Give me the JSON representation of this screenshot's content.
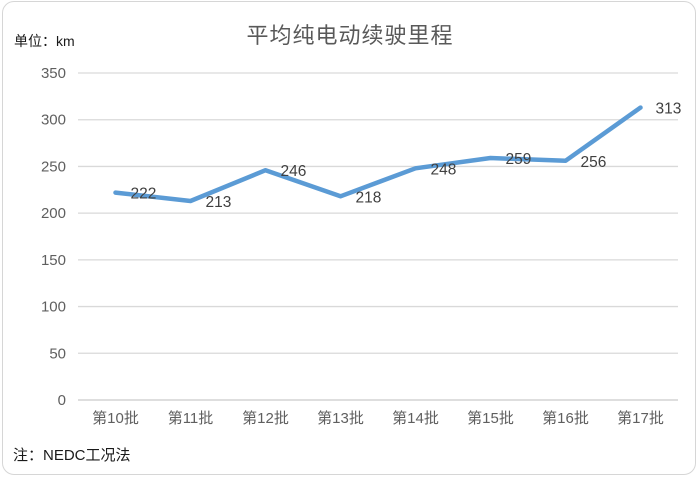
{
  "title": "平均纯电动续驶里程",
  "unit_label": "单位：km",
  "note": "注：NEDC工况法",
  "colors": {
    "line": "#5B9BD5",
    "grid": "#D9D9D9",
    "axis_line": "#C9C9C9",
    "tick_label": "#5f5f5f",
    "data_label": "#404040",
    "title": "#595959",
    "frame_border": "#D6D6D6"
  },
  "chart_data": {
    "type": "line",
    "title": "平均纯电动续驶里程",
    "unit": "km",
    "categories": [
      "第10批",
      "第11批",
      "第12批",
      "第13批",
      "第14批",
      "第15批",
      "第16批",
      "第17批"
    ],
    "series": [
      {
        "name": "平均纯电动续驶里程",
        "values": [
          222,
          213,
          246,
          218,
          248,
          259,
          256,
          313
        ]
      }
    ],
    "ylim": [
      0,
      350
    ],
    "yticks": [
      0,
      50,
      100,
      150,
      200,
      250,
      300,
      350
    ],
    "grid": true,
    "legend_position": "none",
    "data_labels_visible": true,
    "note": "注：NEDC工况法"
  }
}
